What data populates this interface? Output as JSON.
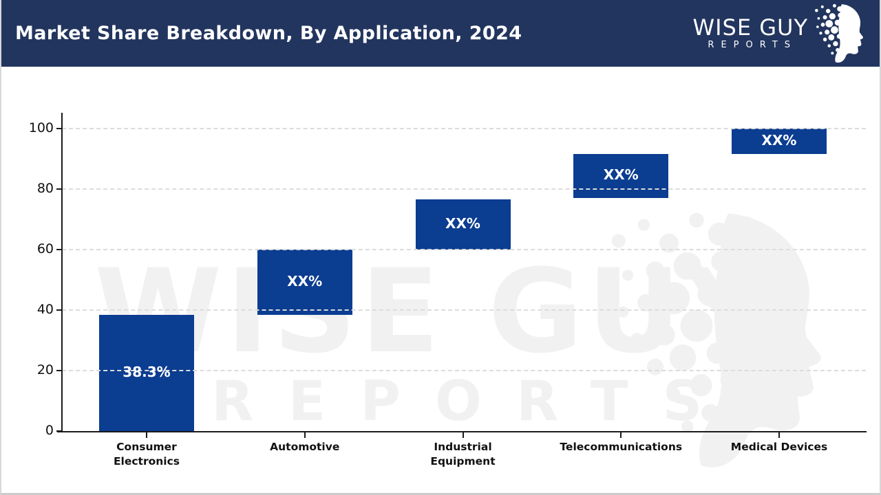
{
  "header": {
    "title": "Market Share Breakdown, By Application, 2024",
    "logo": {
      "line1": "WISE GUY",
      "line2": "REPORTS",
      "head_icon": "dotted-face-profile"
    }
  },
  "watermark": {
    "line1": "WISE GUY",
    "line2": "REPORTS",
    "head_icon": "dotted-face-profile"
  },
  "colors": {
    "header_bg": "#22355e",
    "bar": "#0b3d91",
    "bar_label_text": "#ffffff",
    "gridline": "#dcdcdc",
    "axis": "#1a1a1a",
    "watermark": "#f1f1f1"
  },
  "chart_data": {
    "type": "bar",
    "subtype": "waterfall",
    "title": "Market Share Breakdown, By Application, 2024",
    "xlabel": "",
    "ylabel": "",
    "categories": [
      "Consumer Electronics",
      "Automotive",
      "Industrial Equipment",
      "Telecommunications",
      "Medical Devices"
    ],
    "category_lines": [
      [
        "Consumer",
        "Electronics"
      ],
      [
        "Automotive"
      ],
      [
        "Industrial",
        "Equipment"
      ],
      [
        "Telecommunications"
      ],
      [
        "Medical Devices"
      ]
    ],
    "segments": [
      {
        "category": "Consumer Electronics",
        "start": 0,
        "end": 38.3,
        "label": "38.3%"
      },
      {
        "category": "Automotive",
        "start": 38.3,
        "end": 60,
        "label": "XX%"
      },
      {
        "category": "Industrial Equipment",
        "start": 60,
        "end": 76.5,
        "label": "XX%"
      },
      {
        "category": "Telecommunications",
        "start": 77,
        "end": 91.5,
        "label": "XX%"
      },
      {
        "category": "Medical Devices",
        "start": 91.5,
        "end": 100,
        "label": "XX%"
      }
    ],
    "yticks": [
      0,
      20,
      40,
      60,
      80,
      100
    ],
    "ylim": [
      0,
      105
    ],
    "grid": "horizontal-dashed",
    "legend": "none"
  }
}
